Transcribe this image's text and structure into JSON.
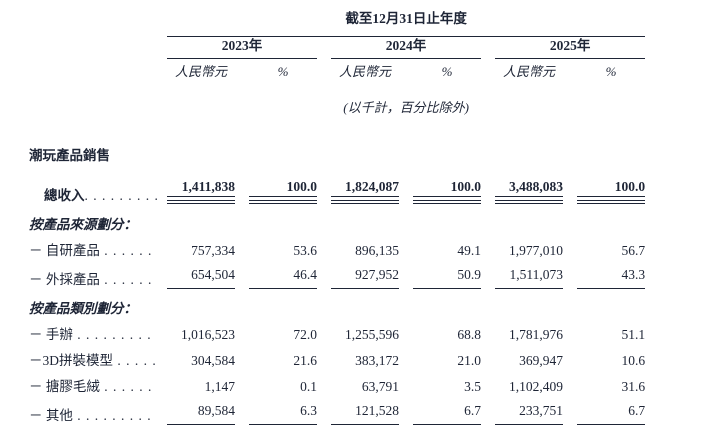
{
  "header": {
    "period_title": "截至12月31日止年度",
    "years": [
      "2023年",
      "2024年",
      "2025年"
    ],
    "currency_label": "人民幣元",
    "percent_label": "%",
    "unit_note": "(以千計，百分比除外)"
  },
  "table": {
    "rows": [
      {
        "id": "trendy-toy-sales-heading",
        "type": "heading",
        "label": "潮玩產品銷售",
        "dots": "",
        "indent": false,
        "values": []
      },
      {
        "id": "total-revenue",
        "type": "total",
        "label": "總收入",
        "dots": ". . . . . . . . .",
        "indent": true,
        "values": [
          "1,411,838",
          "100.0",
          "1,824,087",
          "100.0",
          "3,488,083",
          "100.0"
        ]
      },
      {
        "id": "by-product-source-heading",
        "type": "subheading",
        "label": "按產品來源劃分：",
        "dots": "",
        "indent": false,
        "values": []
      },
      {
        "id": "self-developed-products",
        "type": "plain",
        "label": "－ 自研產品",
        "dots": " . . . . . .",
        "indent": false,
        "values": [
          "757,334",
          "53.6",
          "896,135",
          "49.1",
          "1,977,010",
          "56.7"
        ]
      },
      {
        "id": "externally-sourced-products",
        "type": "section-end",
        "label": "－ 外採產品",
        "dots": " . . . . . .",
        "indent": false,
        "values": [
          "654,504",
          "46.4",
          "927,952",
          "50.9",
          "1,511,073",
          "43.3"
        ]
      },
      {
        "id": "by-product-category-heading",
        "type": "subheading",
        "label": "按產品類別劃分：",
        "dots": "",
        "indent": false,
        "values": []
      },
      {
        "id": "figures",
        "type": "plain",
        "label": "－ 手辦",
        "dots": " . . . . . . . . .",
        "indent": false,
        "values": [
          "1,016,523",
          "72.0",
          "1,255,596",
          "68.8",
          "1,781,976",
          "51.1"
        ]
      },
      {
        "id": "3d-assembly-models",
        "type": "plain",
        "label": "－3D拼裝模型",
        "dots": " . . . . .",
        "indent": false,
        "values": [
          "304,584",
          "21.6",
          "383,172",
          "21.0",
          "369,947",
          "10.6"
        ]
      },
      {
        "id": "vinyl-plush",
        "type": "plain",
        "label": "－ 搪膠毛絨",
        "dots": " . . . . . .",
        "indent": false,
        "values": [
          "1,147",
          "0.1",
          "63,791",
          "3.5",
          "1,102,409",
          "31.6"
        ]
      },
      {
        "id": "others",
        "type": "section-end",
        "label": "－ 其他",
        "dots": " . . . . . . . . .",
        "indent": false,
        "values": [
          "89,584",
          "6.3",
          "121,528",
          "6.7",
          "233,751",
          "6.7"
        ]
      }
    ]
  }
}
